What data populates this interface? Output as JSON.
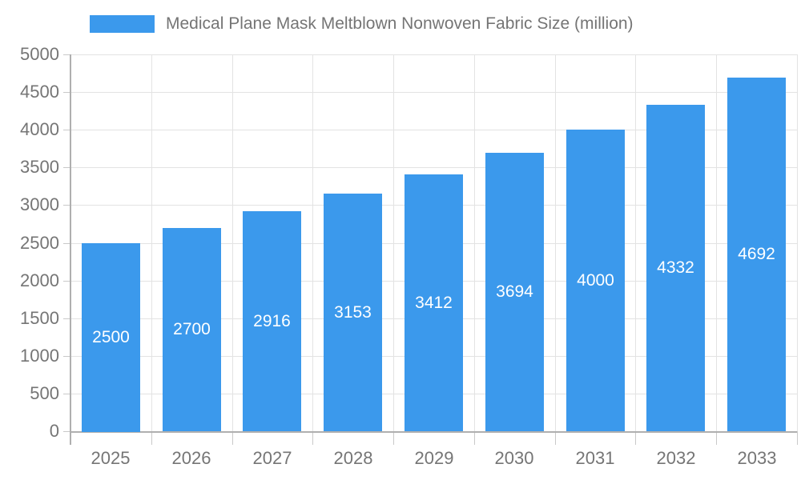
{
  "legend": {
    "label": "Medical Plane Mask Meltblown Nonwoven Fabric Size (million)"
  },
  "chart_data": {
    "type": "bar",
    "title": "Medical Plane Mask Meltblown Nonwoven Fabric Size (million)",
    "categories": [
      "2025",
      "2026",
      "2027",
      "2028",
      "2029",
      "2030",
      "2031",
      "2032",
      "2033"
    ],
    "values": [
      2500,
      2700,
      2916,
      3153,
      3412,
      3694,
      4000,
      4332,
      4692
    ],
    "xlabel": "",
    "ylabel": "",
    "ylim": [
      0,
      5000
    ],
    "ytick_step": 500,
    "yticks": [
      0,
      500,
      1000,
      1500,
      2000,
      2500,
      3000,
      3500,
      4000,
      4500,
      5000
    ],
    "grid": true,
    "legend_position": "top-left",
    "value_labels": "inside-center",
    "colors": {
      "bar": "#3B99EC",
      "value_label": "#FFFFFF",
      "axis_text": "#757575",
      "grid_line": "#E3E3E3",
      "axis_line": "#AFAFAF",
      "tick_line": "#C9C9C9",
      "background": "#FFFFFF"
    }
  }
}
